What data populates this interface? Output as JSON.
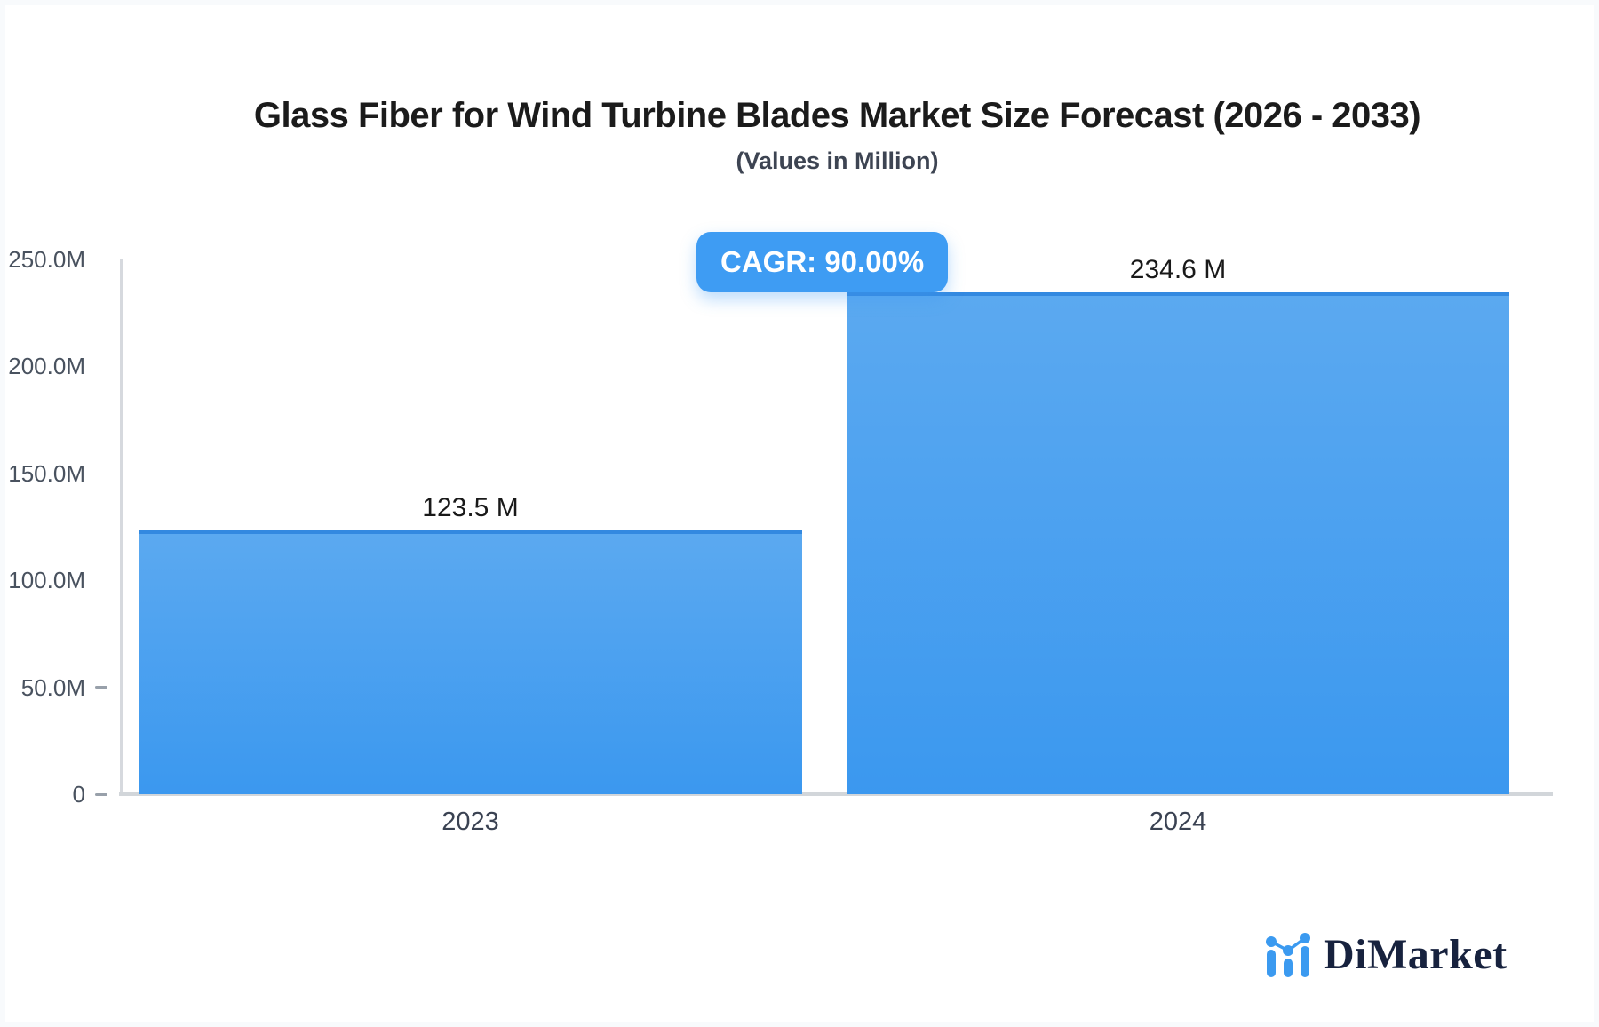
{
  "header": {
    "title": "Glass Fiber for Wind Turbine Blades Market Size Forecast (2026 - 2033)",
    "subtitle": "(Values in Million)"
  },
  "badge": {
    "text": "CAGR: 90.00%",
    "color": "#3E9CF3"
  },
  "chart_data": {
    "type": "bar",
    "title": "Glass Fiber for Wind Turbine Blades Market Size Forecast (2026 - 2033)",
    "subtitle": "(Values in Million)",
    "categories": [
      "2023",
      "2024"
    ],
    "values": [
      123.5,
      234.6
    ],
    "value_labels": [
      "123.5 M",
      "234.6 M"
    ],
    "unit": "Million",
    "xlabel": "",
    "ylabel": "",
    "ylim": [
      0,
      250
    ],
    "grid": false,
    "legend": false,
    "y_ticks": [
      {
        "label": "250.0M",
        "value": 250,
        "dash": false
      },
      {
        "label": "200.0M",
        "value": 200,
        "dash": false
      },
      {
        "label": "150.0M",
        "value": 150,
        "dash": false
      },
      {
        "label": "100.0M",
        "value": 100,
        "dash": false
      },
      {
        "label": "50.0M",
        "value": 50,
        "dash": true
      },
      {
        "label": "0",
        "value": 0,
        "dash": true
      }
    ],
    "bar_color_top": "#5BA9F0",
    "bar_color_bottom": "#3B98EF",
    "bar_top_border_color": "#3389E0",
    "axis_color": "#d6d9de"
  },
  "brand": {
    "name": "DiMarket",
    "icon": "bar-chart-trend-logo-icon",
    "text_color": "#17223E",
    "accent_color": "#3B9AF0"
  }
}
